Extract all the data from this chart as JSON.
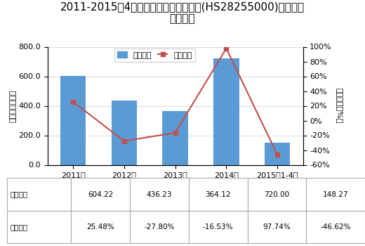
{
  "title_line1": "2011-2015年4月铜的氧化物及氢氧化物(HS28255000)出口量及",
  "title_line2": "增速统计",
  "categories": [
    "2011年",
    "2012年",
    "2013年",
    "2014年",
    "2015年1-4月"
  ],
  "bar_values": [
    604.22,
    436.23,
    364.12,
    720.0,
    148.27
  ],
  "line_values": [
    25.48,
    -27.8,
    -16.53,
    97.74,
    -46.62
  ],
  "bar_color": "#5B9BD5",
  "line_color": "#C0504D",
  "ylabel_left": "出口数量（吨）",
  "ylabel_right": "同比增速（%）",
  "ylim_left": [
    0,
    800
  ],
  "ylim_right": [
    -60,
    100
  ],
  "yticks_left": [
    0.0,
    200.0,
    400.0,
    600.0,
    800.0
  ],
  "yticks_right": [
    -60,
    -40,
    -20,
    0,
    20,
    40,
    60,
    80,
    100
  ],
  "legend_bar": "出口数量",
  "legend_line": "同比增长",
  "table_row1": [
    "出口数量",
    "604.22",
    "436.23",
    "364.12",
    "720.00",
    "148.27"
  ],
  "table_row2": [
    "同比增长",
    "25.48%",
    "-27.80%",
    "-16.53%",
    "97.74%",
    "-46.62%"
  ],
  "background_color": "#FFFFFF",
  "grid_color": "#DDDDDD",
  "title_fontsize": 11,
  "axis_fontsize": 8,
  "tick_fontsize": 8
}
